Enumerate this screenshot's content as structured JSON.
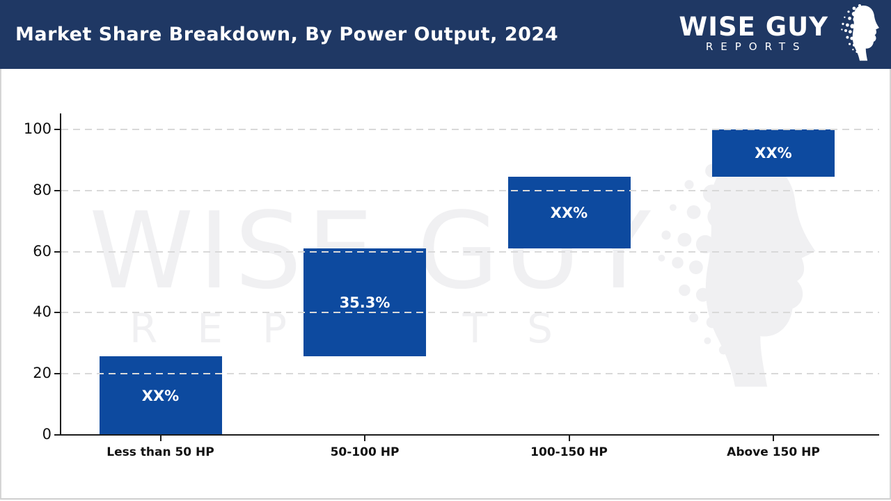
{
  "header": {
    "title": "Market Share Breakdown, By Power Output, 2024",
    "brand_line1": "WISE GUY",
    "brand_line2": "REPORTS"
  },
  "watermark": {
    "line1": "WISE GUY",
    "line2": "REPORTS"
  },
  "colors": {
    "header_bg": "#1f3864",
    "bar": "#0d4a9f",
    "bar_label_text": "#ffffff",
    "grid": "#d9d9d9",
    "axis": "#1c1c1c",
    "tick_label": "#111111",
    "watermark": "#f0f0f2",
    "frame_border": "#d5d5d5"
  },
  "chart_data": {
    "type": "bar",
    "subtype": "waterfall-floating-segments",
    "title": "Market Share Breakdown, By Power Output, 2024",
    "categories": [
      "Less than 50 HP",
      "50-100 HP",
      "100-150 HP",
      "Above 150 HP"
    ],
    "segments": [
      {
        "category": "Less than 50 HP",
        "start": 0,
        "end": 25.7,
        "label": "XX%"
      },
      {
        "category": "50-100 HP",
        "start": 25.7,
        "end": 61.0,
        "label": "35.3%"
      },
      {
        "category": "100-150 HP",
        "start": 61.0,
        "end": 84.5,
        "label": "XX%"
      },
      {
        "category": "Above 150 HP",
        "start": 84.5,
        "end": 100.0,
        "label": "XX%"
      }
    ],
    "ylim": [
      0,
      100
    ],
    "yticks": [
      0,
      20,
      40,
      60,
      80,
      100
    ],
    "xlabel": "",
    "ylabel": "",
    "grid": "horizontal-dashed",
    "legend": "none",
    "bar_color": "#0d4a9f",
    "value_label_position": "center-of-bar"
  }
}
